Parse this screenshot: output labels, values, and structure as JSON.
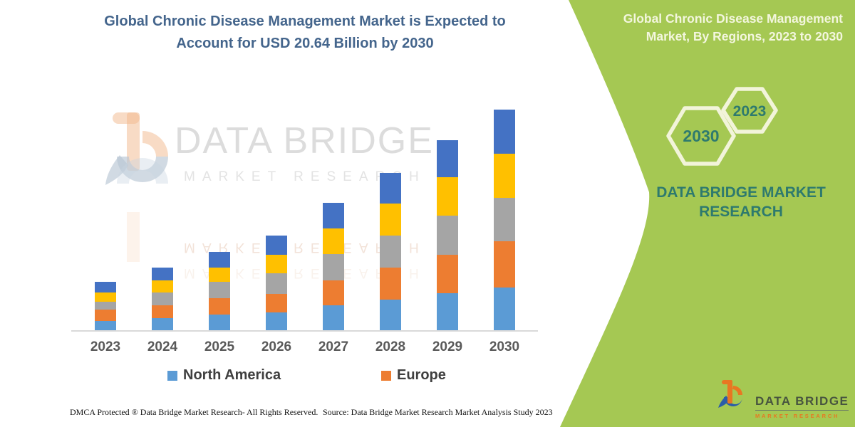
{
  "colors": {
    "panel_green": "#a5c853",
    "teal": "#2e7a6e",
    "title_blue": "#44658c",
    "axis_gray": "#d9d9d9",
    "hex_stroke": "#f2f4da"
  },
  "header": {
    "title_line1": "Global Chronic Disease Management Market is Expected to",
    "title_line2": "Account for USD 20.64 Billion by 2030"
  },
  "watermark": {
    "title": "DATA BRIDGE",
    "subtitle": "MARKET RESEARCH",
    "reflection1": "MARKET RESEARCH",
    "reflection2": "MARKET RESEARCH"
  },
  "chart_data": {
    "type": "bar",
    "stacked": true,
    "title": "Global Chronic Disease Management Market, By Regions, 2023 to 2030",
    "categories": [
      "2023",
      "2024",
      "2025",
      "2026",
      "2027",
      "2028",
      "2029",
      "2030"
    ],
    "series": [
      {
        "name": "North America",
        "color": "#5b9bd5",
        "values": [
          0.9,
          1.12,
          1.45,
          1.66,
          2.33,
          2.88,
          3.48,
          4.0
        ]
      },
      {
        "name": "Europe",
        "color": "#ed7d31",
        "values": [
          1.04,
          1.22,
          1.55,
          1.77,
          2.33,
          3.0,
          3.62,
          4.33
        ]
      },
      {
        "name": "unlabeled-gray-region",
        "color": "#a5a5a5",
        "values": [
          0.73,
          1.22,
          1.55,
          1.88,
          2.44,
          3.0,
          3.66,
          4.1
        ]
      },
      {
        "name": "unlabeled-yellow-region",
        "color": "#ffc000",
        "values": [
          0.88,
          1.11,
          1.33,
          1.77,
          2.44,
          3.0,
          3.55,
          4.13
        ]
      },
      {
        "name": "unlabeled-darkblue-region",
        "color": "#4472c4",
        "values": [
          1.0,
          1.22,
          1.44,
          1.77,
          2.37,
          2.88,
          3.51,
          4.08
        ]
      }
    ],
    "totals": [
      4.55,
      5.89,
      7.32,
      8.85,
      11.91,
      14.76,
      17.82,
      20.64
    ],
    "units": "USD billion (estimated; 2030 total labeled as USD 20.64 billion)",
    "xlabel": "",
    "ylabel": "",
    "ylim": [
      0,
      21
    ],
    "grid": false,
    "legend_visible": [
      "North America",
      "Europe"
    ],
    "legend_position": "bottom"
  },
  "panel": {
    "title_line1": "Global Chronic Disease Management",
    "title_line2": "Market, By Regions, 2023 to 2030",
    "hexagon_big_label": "2030",
    "hexagon_small_label": "2023",
    "brand_line1": "DATA BRIDGE MARKET",
    "brand_line2": "RESEARCH",
    "logo_name": "DATA BRIDGE",
    "logo_sub": "MARKET RESEARCH"
  },
  "footer": {
    "left": "DMCA Protected ® Data Bridge Market Research- All Rights Reserved.",
    "right": "Source: Data Bridge Market Research Market Analysis Study 2023"
  }
}
